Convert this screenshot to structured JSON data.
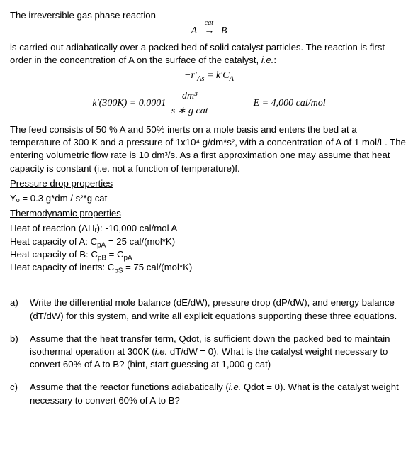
{
  "intro_line": "The irreversible gas phase reaction",
  "rxn_A": "A",
  "rxn_cat": "cat",
  "rxn_arrow": "→",
  "rxn_B": "B",
  "p1": "is carried out adiabatically over a packed bed of solid catalyst particles.  The reaction is first-order in the concentration of A on the surface of the catalyst, ",
  "ie": "i.e.",
  "p1_tail": ":",
  "rate_law": "−r′",
  "rate_sub": "As",
  "rate_eq": " = k′C",
  "rate_sub2": "A",
  "k_lhs": "k′(300K) = 0.0001 ",
  "k_num": "dm³",
  "k_den": "s ∗ g cat",
  "E_eq": "E = 4,000 cal/mol",
  "p2": "The feed consists of 50 % A and 50% inerts on a mole basis and enters the bed at a temperature of 300 K and a pressure of 1x10⁴ g/dm*s², with a concentration of A of 1 mol/L.  The entering volumetric flow rate is 10 dm³/s.  As a first approximation one may assume that heat capacity is constant (i.e. not a function of temperature)f.",
  "sec1_title": "Pressure drop properties",
  "sec1_line": "Υₒ = 0.3 g*dm / s²*g cat",
  "sec2_title": "Thermodynamic properties",
  "td1": "Heat of reaction (ΔHᵣ): -10,000 cal/mol A",
  "td2_pre": "Heat capacity of A: C",
  "td2_sub": "pA",
  "td2_post": " = 25 cal/(mol*K)",
  "td3_pre": "Heat capacity of B: C",
  "td3_sub": "pB",
  "td3_mid": " = C",
  "td3_sub2": "pA",
  "td4_pre": "Heat capacity of inerts: C",
  "td4_sub": "pS",
  "td4_post": " = 75 cal/(mol*K)",
  "qa_label": "a)",
  "qa_text": "Write the differential mole balance (dE/dW), pressure drop (dP/dW), and energy balance (dT/dW) for this system, and write all explicit equations supporting these three equations.",
  "qb_label": "b)",
  "qb_text_1": "Assume that the heat transfer term, Qdot, is sufficient down the packed bed to maintain isothermal operation at 300K (",
  "qb_text_2": " dT/dW = 0).  What is the catalyst weight necessary to convert 60% of A to B? (hint, start guessing at 1,000 g cat)",
  "qc_label": "c)",
  "qc_text_1": "Assume that the reactor functions adiabatically (",
  "qc_text_2": " Qdot = 0).  What is the catalyst weight necessary to convert 60% of A to B?"
}
